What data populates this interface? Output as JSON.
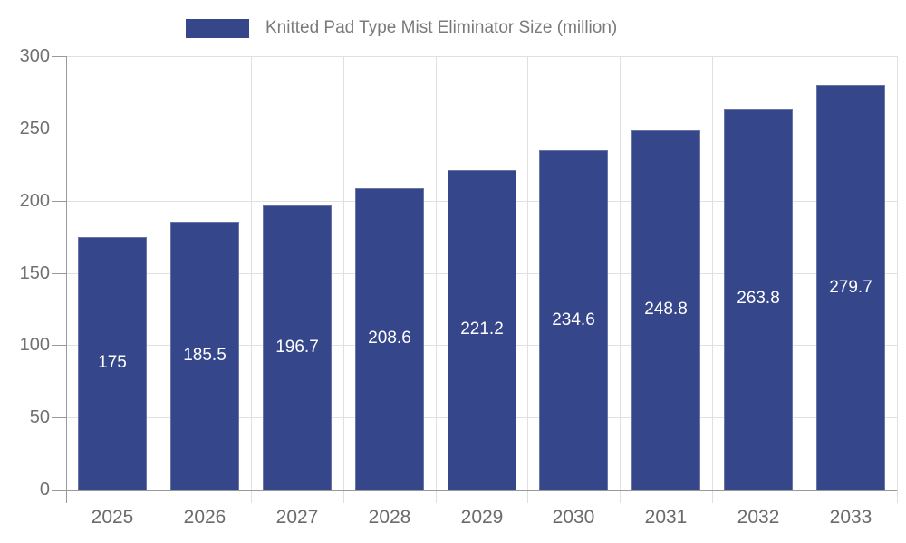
{
  "legend": {
    "label": "Knitted Pad Type Mist Eliminator Size (million)"
  },
  "chart_data": {
    "type": "bar",
    "title": "Knitted Pad Type Mist Eliminator Size (million)",
    "categories": [
      "2025",
      "2026",
      "2027",
      "2028",
      "2029",
      "2030",
      "2031",
      "2032",
      "2033"
    ],
    "values": [
      175,
      185.5,
      196.7,
      208.6,
      221.2,
      234.6,
      248.8,
      263.8,
      279.7
    ],
    "value_labels": [
      "175",
      "185.5",
      "196.7",
      "208.6",
      "221.2",
      "234.6",
      "248.8",
      "263.8",
      "279.7"
    ],
    "xlabel": "",
    "ylabel": "",
    "ylim": [
      0,
      300
    ],
    "yticks": [
      0,
      50,
      100,
      150,
      200,
      250,
      300
    ],
    "grid": true,
    "legend_position": "top",
    "colors": {
      "bar": "#35478a",
      "bar_label": "#ffffff",
      "grid_line": "#e0e0e0",
      "axis_line": "#999999",
      "y_tick_label": "#707070",
      "x_tick_label": "#6b6b6b",
      "legend_text": "#7a7a7a",
      "background": "#ffffff"
    }
  }
}
